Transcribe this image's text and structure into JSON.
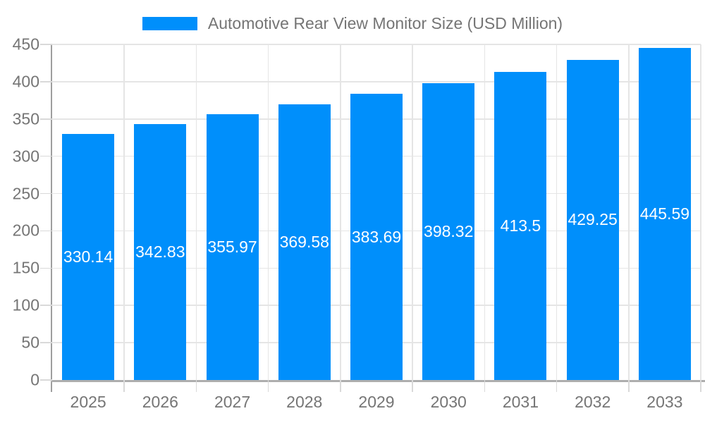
{
  "chart_data": {
    "type": "bar",
    "title": "Automotive Rear View Monitor Size (USD Million)",
    "legend": {
      "position": "top",
      "label": "Automotive Rear View Monitor Size (USD Million)"
    },
    "categories": [
      "2025",
      "2026",
      "2027",
      "2028",
      "2029",
      "2030",
      "2031",
      "2032",
      "2033"
    ],
    "series": [
      {
        "name": "Automotive Rear View Monitor Size (USD Million)",
        "values": [
          330.14,
          342.83,
          355.97,
          369.58,
          383.69,
          398.32,
          413.5,
          429.25,
          445.59
        ],
        "labels": [
          "330.14",
          "342.83",
          "355.97",
          "369.58",
          "383.69",
          "398.32",
          "413.5",
          "429.25",
          "445.59"
        ]
      }
    ],
    "xlabel": "",
    "ylabel": "",
    "ylim": [
      0,
      450
    ],
    "ytick_step": 50,
    "yticks": [
      0,
      50,
      100,
      150,
      200,
      250,
      300,
      350,
      400,
      450
    ],
    "grid": true,
    "data_labels_inside_bars": true,
    "colors": {
      "bar": "#008FFB",
      "data_label": "#FFFFFF",
      "axis_text": "#757575",
      "grid_line": "#E5E5E5",
      "axis_line": "#A3A3A3"
    }
  }
}
